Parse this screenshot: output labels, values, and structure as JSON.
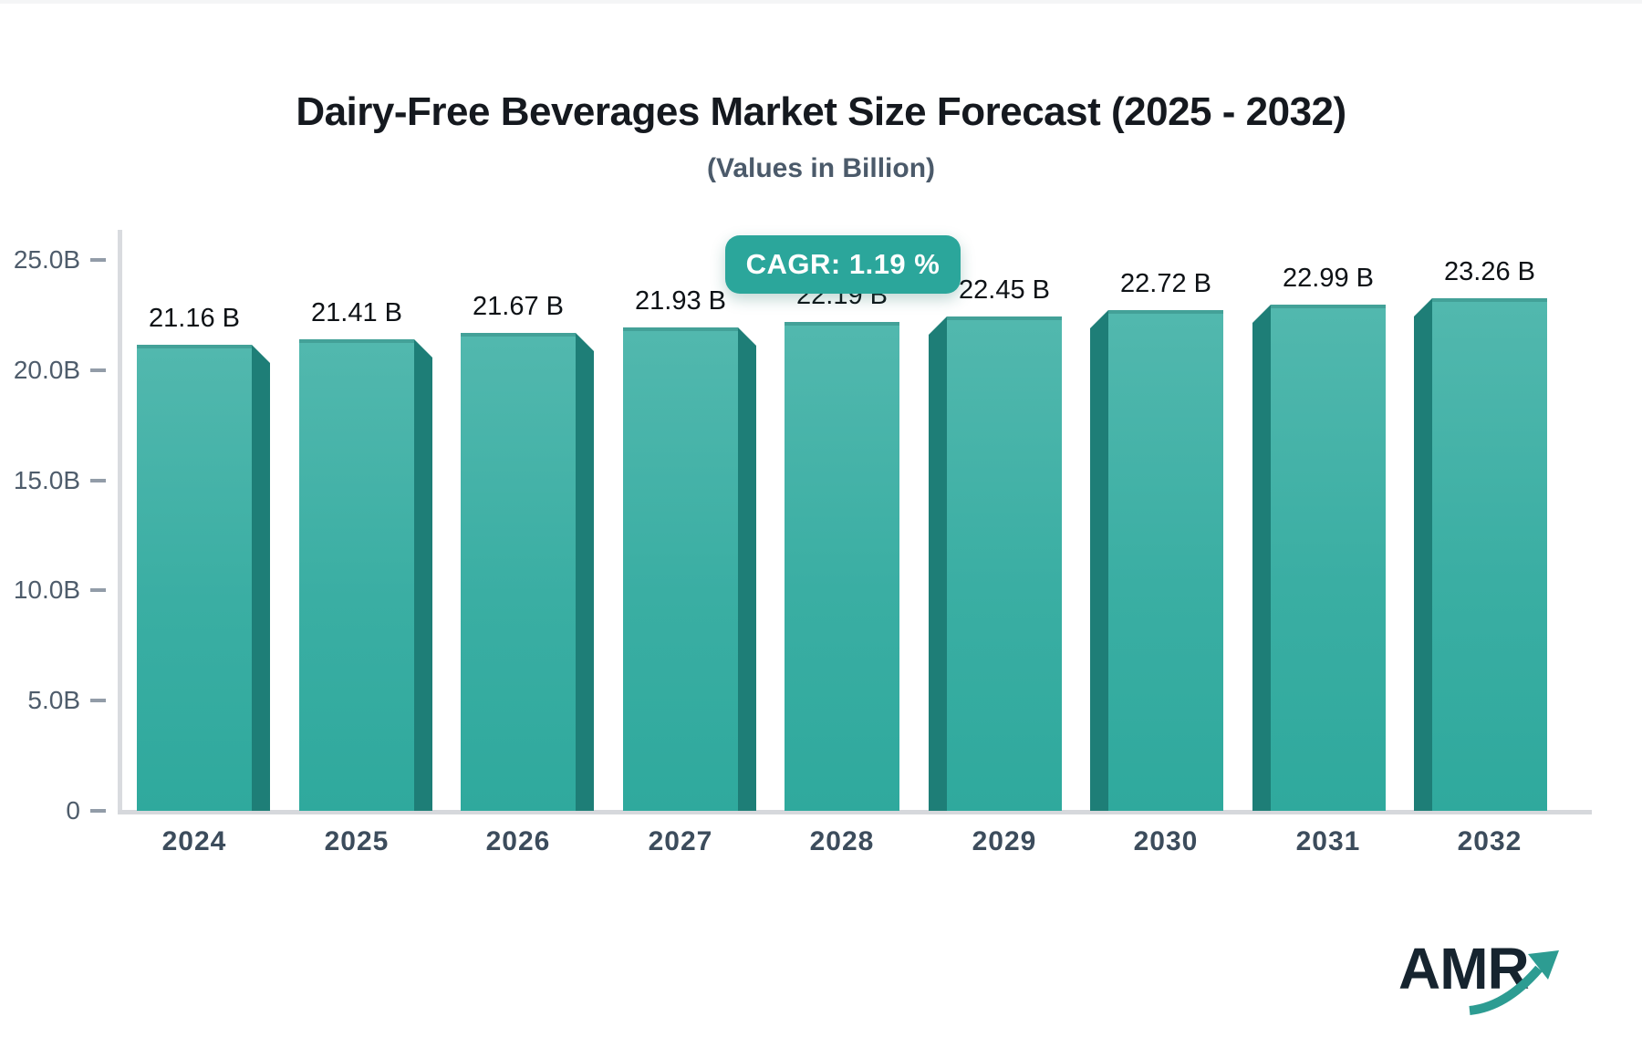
{
  "title": "Dairy-Free Beverages Market Size Forecast (2025 - 2032)",
  "subtitle": "(Values in Billion)",
  "badge": {
    "label": "CAGR: 1.19 %"
  },
  "logo": {
    "text": "AMR"
  },
  "colors": {
    "bar_face_top": "#52b8ae",
    "bar_face_bottom": "#2fa99d",
    "bar_side": "#1e7e77",
    "badge_background": "#2ba69b",
    "axis_line": "#d9dbdf",
    "tick_text": "#4e5c6b",
    "year_text": "#3c4c5c",
    "value_text": "#0e1216",
    "logo_text": "#16242f",
    "logo_arrow": "#2d9c92"
  },
  "chart_data": {
    "type": "bar",
    "title": "Dairy-Free Beverages Market Size Forecast (2025 - 2032)",
    "subtitle": "(Values in Billion)",
    "cagr": "1.19 %",
    "categories": [
      "2024",
      "2025",
      "2026",
      "2027",
      "2028",
      "2029",
      "2030",
      "2031",
      "2032"
    ],
    "values": [
      21.16,
      21.41,
      21.67,
      21.93,
      22.19,
      22.45,
      22.72,
      22.99,
      23.26
    ],
    "value_labels": [
      "21.16 B",
      "21.41 B",
      "21.67 B",
      "21.93 B",
      "22.19 B",
      "22.45 B",
      "22.72 B",
      "22.99 B",
      "23.26 B"
    ],
    "xlabel": "",
    "ylabel": "",
    "ylim": [
      0,
      25
    ],
    "yticks": {
      "labels": [
        "25.0B",
        "20.0B",
        "15.0B",
        "10.0B",
        "5.0B",
        "0"
      ],
      "values": [
        25,
        20,
        15,
        10,
        5,
        0
      ]
    },
    "grid": false,
    "legend": false
  }
}
